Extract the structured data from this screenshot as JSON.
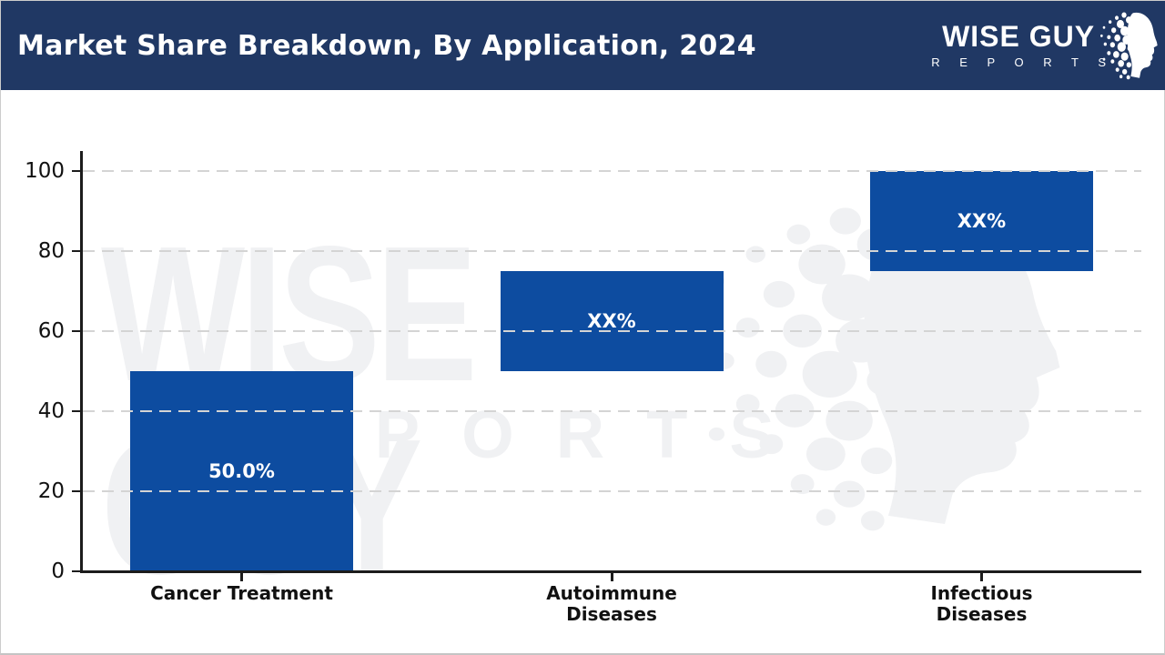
{
  "header": {
    "bg_color": "#203864",
    "title": "Market Share Breakdown, By Application, 2024",
    "logo": {
      "line1": "WISE GUY",
      "line2": "R E P O R T S",
      "face_icon": "dotted-head-icon"
    }
  },
  "watermark": {
    "line1": "WISE GUY",
    "line2": "REPORTS",
    "face_icon": "dotted-head-icon"
  },
  "chart_data": {
    "type": "bar",
    "subtype": "floating-segment market-share breakdown (waterfall style)",
    "title": "Market Share Breakdown, By Application, 2024",
    "categories": [
      "Cancer Treatment",
      "Autoimmune\nDiseases",
      "Infectious\nDiseases"
    ],
    "segments": [
      {
        "category": "Cancer Treatment",
        "start": 0,
        "end": 50,
        "label": "50.0%"
      },
      {
        "category": "Autoimmune Diseases",
        "start": 50,
        "end": 75,
        "label": "XX%"
      },
      {
        "category": "Infectious Diseases",
        "start": 75,
        "end": 100,
        "label": "XX%"
      }
    ],
    "bar_color": "#0d4ca0",
    "value_label_color": "#ffffff",
    "yticks": [
      0,
      20,
      40,
      60,
      80,
      100
    ],
    "ylim": [
      0,
      105
    ],
    "grid": "horizontal-dashed",
    "gridline_color": "#d4d4d4",
    "axis_color": "#1c1c1c",
    "legend": "none"
  }
}
